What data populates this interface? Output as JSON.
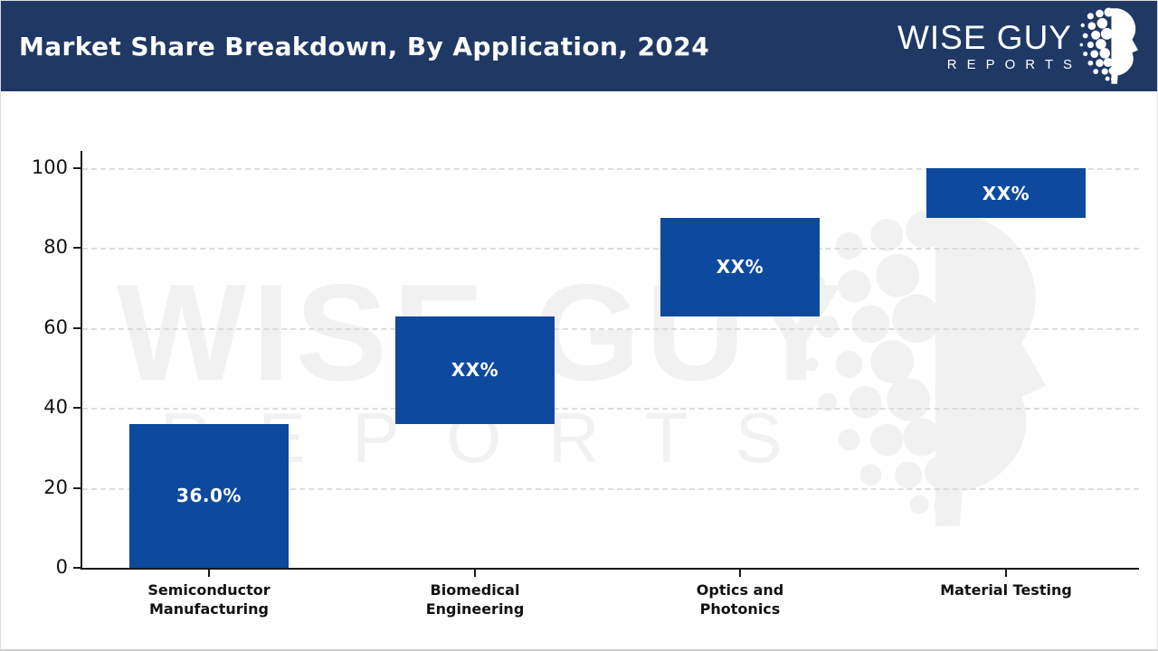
{
  "header": {
    "title": "Market Share Breakdown, By Application, 2024",
    "logo": {
      "line1": "WISE GUY",
      "line2": "REPORTS"
    }
  },
  "watermark": {
    "line1": "WISE GUY",
    "line2": "REPORTS"
  },
  "colors": {
    "header_bg": "#1f3864",
    "bar": "#0d4a9e",
    "grid": "#dcdcdc",
    "axis": "#1a1a1a",
    "watermark": "#f1f1f2",
    "bar_label": "#ffffff"
  },
  "chart_data": {
    "type": "bar",
    "subtype": "waterfall",
    "title": "Market Share Breakdown, By Application, 2024",
    "categories": [
      [
        "Semiconductor",
        "Manufacturing"
      ],
      [
        "Biomedical",
        "Engineering"
      ],
      [
        "Optics and",
        "Photonics"
      ],
      [
        "Material Testing"
      ]
    ],
    "segments": [
      {
        "category": "Semiconductor Manufacturing",
        "start": 0,
        "end": 36,
        "label": "36.0%"
      },
      {
        "category": "Biomedical Engineering",
        "start": 36,
        "end": 63,
        "label": "XX%"
      },
      {
        "category": "Optics and Photonics",
        "start": 63,
        "end": 87.5,
        "label": "XX%"
      },
      {
        "category": "Material Testing",
        "start": 87.5,
        "end": 100,
        "label": "XX%"
      }
    ],
    "yticks": [
      0,
      20,
      40,
      60,
      80,
      100
    ],
    "ylim": [
      0,
      104
    ],
    "grid": "horizontal-dashed",
    "legend": false,
    "xlabel": "",
    "ylabel": ""
  }
}
